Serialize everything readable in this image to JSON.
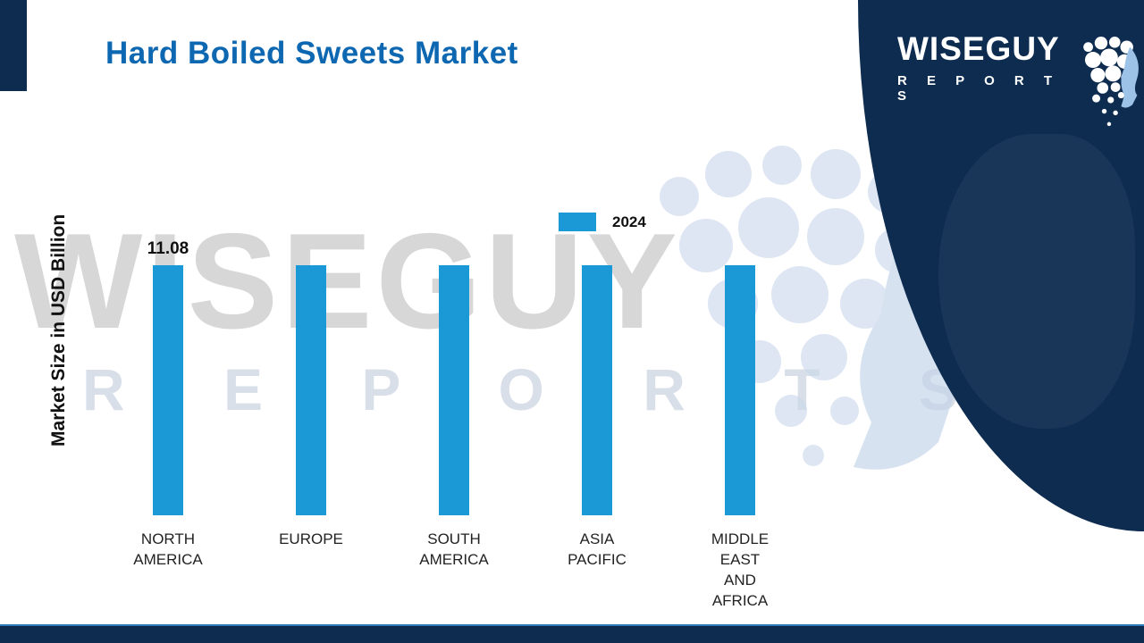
{
  "title": "Hard Boiled Sweets Market",
  "y_axis_label": "Market Size in USD Billion",
  "watermark": {
    "line1": "WISEGUY",
    "line2": "R E P O R T S"
  },
  "logo": {
    "brand": "WISEGUY",
    "subtitle": "R E P O R T S"
  },
  "colors": {
    "bar": "#1b99d6",
    "navy": "#0d2c50",
    "title": "#0e67b1"
  },
  "chart_data": {
    "type": "bar",
    "title": "Hard Boiled Sweets Market",
    "xlabel": "",
    "ylabel": "Market Size in USD Billion",
    "categories": [
      "NORTH AMERICA",
      "EUROPE",
      "SOUTH AMERICA",
      "ASIA PACIFIC",
      "MIDDLE EAST AND AFRICA"
    ],
    "category_lines": [
      [
        "NORTH",
        "AMERICA"
      ],
      [
        "EUROPE"
      ],
      [
        "SOUTH",
        "AMERICA"
      ],
      [
        "ASIA",
        "PACIFIC"
      ],
      [
        "MIDDLE",
        "EAST",
        "AND",
        "AFRICA"
      ]
    ],
    "series": [
      {
        "name": "2024",
        "values": [
          11.08,
          11.08,
          11.08,
          11.08,
          11.08
        ]
      }
    ],
    "value_labels": [
      "11.08",
      "",
      "",
      "",
      ""
    ],
    "ylim": [
      0,
      11.08
    ],
    "grid": false,
    "legend_position": "top-center"
  }
}
